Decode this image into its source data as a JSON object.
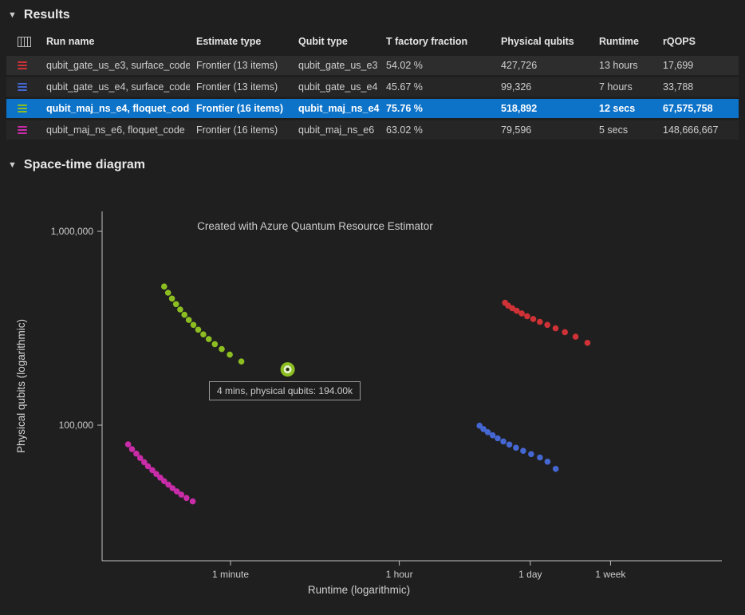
{
  "results": {
    "title": "Results",
    "columns": [
      "Run name",
      "Estimate type",
      "Qubit type",
      "T factory fraction",
      "Physical qubits",
      "Runtime",
      "rQOPS"
    ],
    "rows": [
      {
        "color": "#cf3236",
        "run_name": "qubit_gate_us_e3, surface_code",
        "estimate_type": "Frontier (13 items)",
        "qubit_type": "qubit_gate_us_e3",
        "t_factory_fraction": "54.02 %",
        "physical_qubits": "427,726",
        "runtime": "13 hours",
        "rqops": "17,699",
        "selected": false
      },
      {
        "color": "#4467d2",
        "run_name": "qubit_gate_us_e4, surface_code",
        "estimate_type": "Frontier (13 items)",
        "qubit_type": "qubit_gate_us_e4",
        "t_factory_fraction": "45.67 %",
        "physical_qubits": "99,326",
        "runtime": "7 hours",
        "rqops": "33,788",
        "selected": false
      },
      {
        "color": "#8cbe22",
        "run_name": "qubit_maj_ns_e4, floquet_code",
        "estimate_type": "Frontier (16 items)",
        "qubit_type": "qubit_maj_ns_e4",
        "t_factory_fraction": "75.76 %",
        "physical_qubits": "518,892",
        "runtime": "12 secs",
        "rqops": "67,575,758",
        "selected": true
      },
      {
        "color": "#c92ca9",
        "run_name": "qubit_maj_ns_e6, floquet_code",
        "estimate_type": "Frontier (16 items)",
        "qubit_type": "qubit_maj_ns_e6",
        "t_factory_fraction": "63.02 %",
        "physical_qubits": "79,596",
        "runtime": "5 secs",
        "rqops": "148,666,667",
        "selected": false
      }
    ]
  },
  "diagram": {
    "title": "Space-time diagram"
  },
  "chart_data": {
    "type": "scatter",
    "title": "Created with Azure Quantum Resource Estimator",
    "xlabel": "Runtime (logarithmic)",
    "ylabel": "Physical qubits (logarithmic)",
    "x_scale": "log",
    "y_scale": "log",
    "x_ticks": [
      {
        "label": "1 minute",
        "seconds": 60
      },
      {
        "label": "1 hour",
        "seconds": 3600
      },
      {
        "label": "1 day",
        "seconds": 86400
      },
      {
        "label": "1 week",
        "seconds": 604800
      }
    ],
    "y_ticks": [
      {
        "label": "1,000,000",
        "value": 1000000
      },
      {
        "label": "100,000",
        "value": 100000
      }
    ],
    "series": [
      {
        "name": "qubit_maj_ns_e4, floquet_code",
        "color": "#8cbe22",
        "points": [
          [
            12,
            519000
          ],
          [
            13.2,
            482000
          ],
          [
            14.5,
            450000
          ],
          [
            16,
            421000
          ],
          [
            17.7,
            395000
          ],
          [
            19.6,
            371000
          ],
          [
            21.8,
            349000
          ],
          [
            24.4,
            329000
          ],
          [
            27.4,
            311000
          ],
          [
            31,
            294000
          ],
          [
            35.4,
            278000
          ],
          [
            41,
            262000
          ],
          [
            48.5,
            247000
          ],
          [
            59,
            231000
          ],
          [
            78,
            213000
          ]
        ]
      },
      {
        "name": "qubit_maj_ns_e6, floquet_code",
        "color": "#c92ca9",
        "points": [
          [
            5,
            79596
          ],
          [
            5.5,
            75200
          ],
          [
            6.1,
            71300
          ],
          [
            6.7,
            67700
          ],
          [
            7.4,
            64400
          ],
          [
            8.1,
            61400
          ],
          [
            9,
            58600
          ],
          [
            9.9,
            56000
          ],
          [
            10.9,
            53600
          ],
          [
            12,
            51400
          ],
          [
            13.3,
            49300
          ],
          [
            14.7,
            47300
          ],
          [
            16.3,
            45500
          ],
          [
            18.2,
            43800
          ],
          [
            20.6,
            42100
          ],
          [
            24,
            40400
          ]
        ]
      },
      {
        "name": "qubit_gate_us_e3, surface_code",
        "color": "#cf3236",
        "points": [
          [
            46800,
            427726
          ],
          [
            50400,
            414000
          ],
          [
            55800,
            401000
          ],
          [
            62100,
            389000
          ],
          [
            70200,
            377000
          ],
          [
            80100,
            365000
          ],
          [
            92700,
            353000
          ],
          [
            108900,
            341000
          ],
          [
            130500,
            329000
          ],
          [
            159300,
            316000
          ],
          [
            199800,
            302000
          ],
          [
            259200,
            286000
          ],
          [
            345600,
            266000
          ]
        ]
      },
      {
        "name": "qubit_gate_us_e4, surface_code",
        "color": "#4467d2",
        "points": [
          [
            25200,
            99326
          ],
          [
            27700,
            95500
          ],
          [
            30800,
            92000
          ],
          [
            34600,
            88700
          ],
          [
            39200,
            85500
          ],
          [
            44900,
            82400
          ],
          [
            52000,
            79400
          ],
          [
            61000,
            76500
          ],
          [
            72700,
            73700
          ],
          [
            88200,
            70900
          ],
          [
            109000,
            68100
          ],
          [
            131000,
            64800
          ],
          [
            160000,
            59500
          ]
        ]
      }
    ],
    "highlight": {
      "series": "qubit_maj_ns_e4, floquet_code",
      "point": [
        240,
        194000
      ],
      "color": "#8cbe22",
      "ring_fill": "#e6f2cd",
      "tooltip": "4 mins, physical qubits: 194.00k"
    }
  }
}
